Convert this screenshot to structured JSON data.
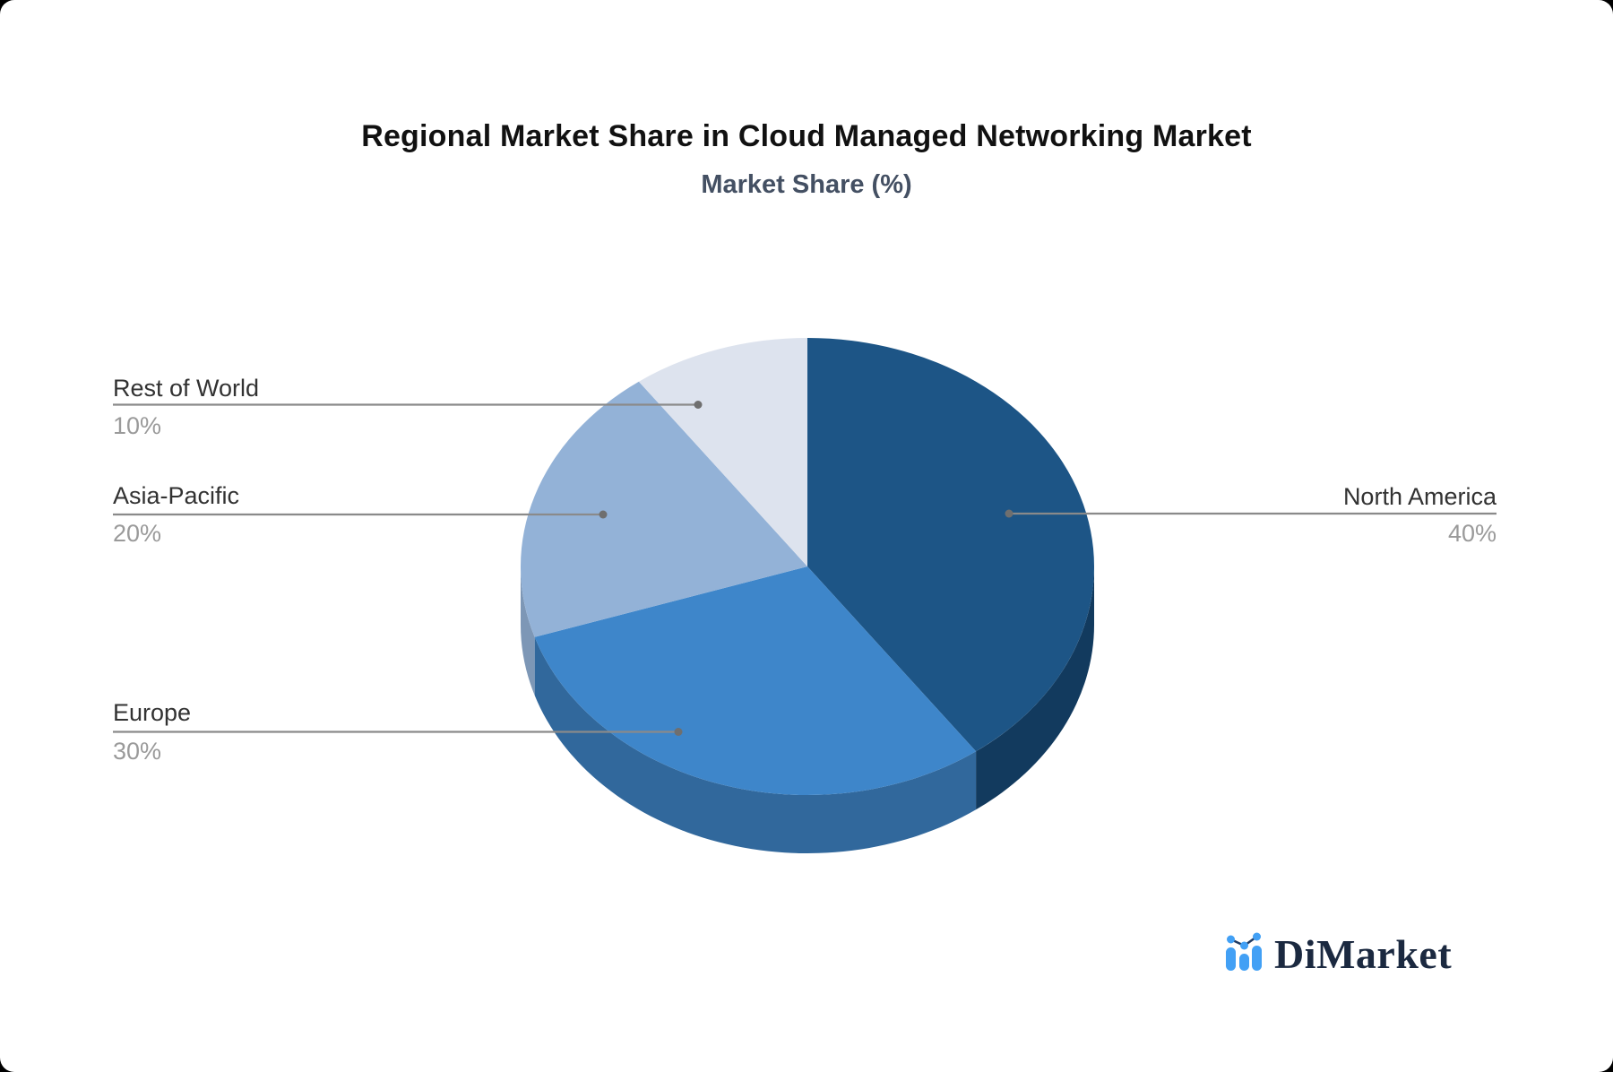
{
  "header": {
    "title": "Regional Market Share in Cloud Managed Networking Market",
    "subtitle": "Market Share (%)"
  },
  "chart_data": {
    "type": "pie",
    "style": "3d",
    "title": "Regional Market Share in Cloud Managed Networking Market",
    "subtitle": "Market Share (%)",
    "unit": "%",
    "direction": "clockwise",
    "start_angle_deg": 0,
    "legend_position": "none",
    "slices": [
      {
        "label": "North America",
        "value": 40,
        "pct_label": "40%",
        "color": "#1d5586",
        "side_color": "#123a5e",
        "label_side": "right"
      },
      {
        "label": "Europe",
        "value": 30,
        "pct_label": "30%",
        "color": "#3e86ca",
        "side_color": "#31689c",
        "label_side": "left"
      },
      {
        "label": "Asia-Pacific",
        "value": 20,
        "pct_label": "20%",
        "color": "#93b2d7",
        "side_color": "#7d97b6",
        "label_side": "left"
      },
      {
        "label": "Rest of World",
        "value": 10,
        "pct_label": "10%",
        "color": "#dde3ee",
        "side_color": "#b9c4d6",
        "label_side": "left"
      }
    ]
  },
  "branding": {
    "logo_text": "DiMarket",
    "logo_icon": "bar-chart-logo-icon",
    "logo_text_color": "#1b2940",
    "logo_accent_color": "#42a0f5"
  },
  "colors": {
    "leader_line": "#8a8a8a",
    "leader_dot": "#6f6f6f",
    "title_text": "#111111",
    "subtitle_text": "#445063",
    "label_text": "#323232",
    "pct_text": "#9a9a9a"
  }
}
